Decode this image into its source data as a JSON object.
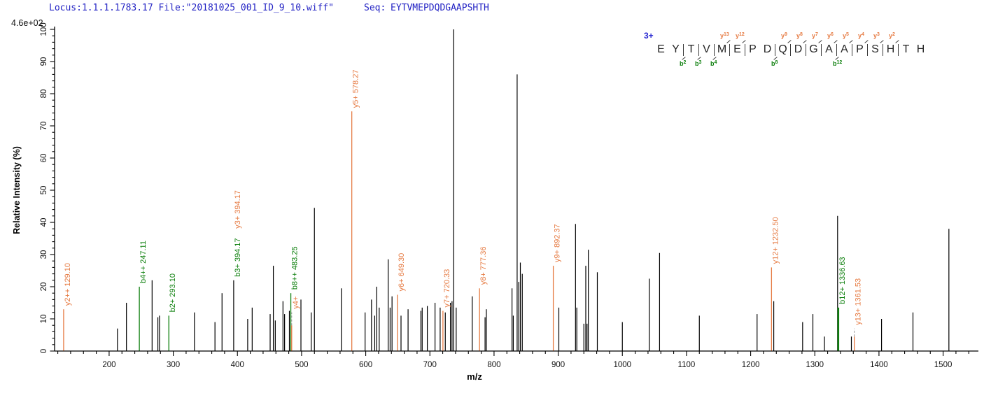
{
  "header": {
    "locus_file": "Locus:1.1.1.1783.17 File:\"20181025_001_ID_9_10.wiff\"",
    "seq_label": "Seq:",
    "seq_value": "EYTVMEPDQDGAAPSHTH"
  },
  "colors": {
    "header_text": "#2323c4",
    "charge": "#2323d0",
    "y_ion": "#e67b43",
    "b_ion": "#0c7f0c",
    "peak": "#000000",
    "axis": "#000000",
    "residue": "#262626",
    "dash_leader": "#999999"
  },
  "sequence_panel": {
    "charge_label": "3+",
    "residues": [
      "E",
      "Y",
      "T",
      "V",
      "M",
      "E",
      "P",
      "D",
      "Q",
      "D",
      "G",
      "A",
      "A",
      "P",
      "S",
      "H",
      "T",
      "H"
    ],
    "y_ions": [
      {
        "label": "y13",
        "site": 5
      },
      {
        "label": "y12",
        "site": 6
      },
      {
        "label": "y9",
        "site": 9
      },
      {
        "label": "y8",
        "site": 10
      },
      {
        "label": "y7",
        "site": 11
      },
      {
        "label": "y6",
        "site": 12
      },
      {
        "label": "y5",
        "site": 13
      },
      {
        "label": "y4",
        "site": 14
      },
      {
        "label": "y3",
        "site": 15
      },
      {
        "label": "y2",
        "site": 16
      }
    ],
    "b_ions": [
      {
        "label": "b2",
        "site": 2
      },
      {
        "label": "b3",
        "site": 3
      },
      {
        "label": "b4",
        "site": 4
      },
      {
        "label": "b8",
        "site": 8
      },
      {
        "label": "b12",
        "site": 12
      }
    ]
  },
  "chart_data": {
    "type": "bar",
    "subtype": "ms2-centroid-mass-spectrum",
    "title": "",
    "xlabel": "m/z",
    "ylabel": "Relative  Intensity (%)",
    "base_peak_intensity": "4.6e+02",
    "xlim": [
      115,
      1555
    ],
    "ylim": [
      0,
      100
    ],
    "x_major_tick_start": 200,
    "x_major_tick_step": 100,
    "x_major_tick_end": 1500,
    "x_minor_tick_step": 20,
    "y_major_tick_step": 10,
    "y_minor_tick_step": 2,
    "grid": false,
    "legend": false,
    "peaks": [
      {
        "mz": 129.1,
        "pct": 13,
        "ion": "y",
        "labels": [
          {
            "text": "y2++ 129.10",
            "ion": "y"
          }
        ]
      },
      {
        "mz": 213,
        "pct": 7
      },
      {
        "mz": 227,
        "pct": 15
      },
      {
        "mz": 247.11,
        "pct": 20,
        "ion": "b",
        "labels": [
          {
            "text": "b4++ 247.11",
            "ion": "b"
          }
        ]
      },
      {
        "mz": 267,
        "pct": 22
      },
      {
        "mz": 276,
        "pct": 10.5
      },
      {
        "mz": 278.5,
        "pct": 11
      },
      {
        "mz": 293.1,
        "pct": 11,
        "ion": "b",
        "labels": [
          {
            "text": "b2+ 293.10",
            "ion": "b"
          }
        ]
      },
      {
        "mz": 333,
        "pct": 12
      },
      {
        "mz": 365,
        "pct": 9
      },
      {
        "mz": 376,
        "pct": 18
      },
      {
        "mz": 394.17,
        "pct": 22,
        "labels": [
          {
            "text": "b3+ 394.17",
            "ion": "b"
          },
          {
            "text": "y3+ 394.17",
            "ion": "y"
          }
        ]
      },
      {
        "mz": 416,
        "pct": 10
      },
      {
        "mz": 423,
        "pct": 13.5
      },
      {
        "mz": 451,
        "pct": 11.5
      },
      {
        "mz": 456,
        "pct": 26.5
      },
      {
        "mz": 459,
        "pct": 9.5
      },
      {
        "mz": 471,
        "pct": 15.5
      },
      {
        "mz": 473.5,
        "pct": 11.5
      },
      {
        "mz": 481,
        "pct": 12.5
      },
      {
        "mz": 483.25,
        "pct": 9.5,
        "ion": "b",
        "label_start_pct": 18,
        "labels": [
          {
            "text": "b8++ 483.25",
            "ion": "b"
          }
        ]
      },
      {
        "mz": 484.6,
        "pct": 8,
        "ion": "y",
        "dashed": true,
        "label_start_pct": 12,
        "labels": [
          {
            "text": "y4+",
            "ion": "y"
          }
        ]
      },
      {
        "mz": 499,
        "pct": 16
      },
      {
        "mz": 515,
        "pct": 12
      },
      {
        "mz": 520,
        "pct": 44.5
      },
      {
        "mz": 562,
        "pct": 19.5
      },
      {
        "mz": 578.27,
        "pct": 74.5,
        "ion": "y",
        "labels": [
          {
            "text": "y5+ 578.27",
            "ion": "y"
          }
        ]
      },
      {
        "mz": 599,
        "pct": 12
      },
      {
        "mz": 609,
        "pct": 16
      },
      {
        "mz": 614,
        "pct": 11
      },
      {
        "mz": 617,
        "pct": 20
      },
      {
        "mz": 621,
        "pct": 13.5
      },
      {
        "mz": 635,
        "pct": 28.5
      },
      {
        "mz": 638,
        "pct": 13.5
      },
      {
        "mz": 641,
        "pct": 17
      },
      {
        "mz": 649.3,
        "pct": 17.5,
        "ion": "y",
        "labels": [
          {
            "text": "y6+ 649.30",
            "ion": "y"
          }
        ]
      },
      {
        "mz": 655,
        "pct": 11
      },
      {
        "mz": 666,
        "pct": 13
      },
      {
        "mz": 686,
        "pct": 12.5
      },
      {
        "mz": 688,
        "pct": 13.5
      },
      {
        "mz": 696,
        "pct": 14
      },
      {
        "mz": 708,
        "pct": 15
      },
      {
        "mz": 716,
        "pct": 13.5
      },
      {
        "mz": 720.33,
        "pct": 12.5,
        "ion": "y",
        "labels": [
          {
            "text": "y7+ 720.33",
            "ion": "y"
          }
        ]
      },
      {
        "mz": 724,
        "pct": 12
      },
      {
        "mz": 732,
        "pct": 15
      },
      {
        "mz": 734.5,
        "pct": 15.5
      },
      {
        "mz": 737,
        "pct": 100
      },
      {
        "mz": 741,
        "pct": 13.5
      },
      {
        "mz": 766,
        "pct": 17
      },
      {
        "mz": 777.36,
        "pct": 19.5,
        "ion": "y",
        "labels": [
          {
            "text": "y8+ 777.36",
            "ion": "y"
          }
        ]
      },
      {
        "mz": 786,
        "pct": 10.5
      },
      {
        "mz": 788,
        "pct": 13
      },
      {
        "mz": 828,
        "pct": 19.5
      },
      {
        "mz": 830,
        "pct": 11
      },
      {
        "mz": 836,
        "pct": 86
      },
      {
        "mz": 838.5,
        "pct": 21.5
      },
      {
        "mz": 841,
        "pct": 27.5
      },
      {
        "mz": 844,
        "pct": 24
      },
      {
        "mz": 892.37,
        "pct": 26.5,
        "ion": "y",
        "labels": [
          {
            "text": "y9+ 892.37",
            "ion": "y"
          }
        ]
      },
      {
        "mz": 901,
        "pct": 13.5
      },
      {
        "mz": 927,
        "pct": 39.5
      },
      {
        "mz": 929,
        "pct": 13.5
      },
      {
        "mz": 940,
        "pct": 8.5
      },
      {
        "mz": 943,
        "pct": 26.5
      },
      {
        "mz": 945,
        "pct": 8.5
      },
      {
        "mz": 947,
        "pct": 31.5
      },
      {
        "mz": 961,
        "pct": 24.5
      },
      {
        "mz": 1000,
        "pct": 9
      },
      {
        "mz": 1042,
        "pct": 22.5
      },
      {
        "mz": 1058,
        "pct": 30.5
      },
      {
        "mz": 1120,
        "pct": 11
      },
      {
        "mz": 1210,
        "pct": 11.5
      },
      {
        "mz": 1232.5,
        "pct": 26,
        "ion": "y",
        "labels": [
          {
            "text": "y12+ 1232.50",
            "ion": "y"
          }
        ]
      },
      {
        "mz": 1236,
        "pct": 15.5
      },
      {
        "mz": 1281,
        "pct": 9
      },
      {
        "mz": 1297,
        "pct": 11.5
      },
      {
        "mz": 1315,
        "pct": 4.5
      },
      {
        "mz": 1335.5,
        "pct": 42
      },
      {
        "mz": 1336.63,
        "pct": 13.5,
        "ion": "b",
        "w": 2.5,
        "labels": [
          {
            "text": "b12+ 1336.63",
            "ion": "b"
          }
        ]
      },
      {
        "mz": 1357,
        "pct": 4.5
      },
      {
        "mz": 1361.53,
        "pct": 4.5,
        "ion": "y",
        "dashed": true,
        "label_start_pct": 7,
        "labels": [
          {
            "text": "y13+ 1361.53",
            "ion": "y"
          }
        ]
      },
      {
        "mz": 1404,
        "pct": 10
      },
      {
        "mz": 1453,
        "pct": 12
      },
      {
        "mz": 1509,
        "pct": 38
      }
    ]
  }
}
